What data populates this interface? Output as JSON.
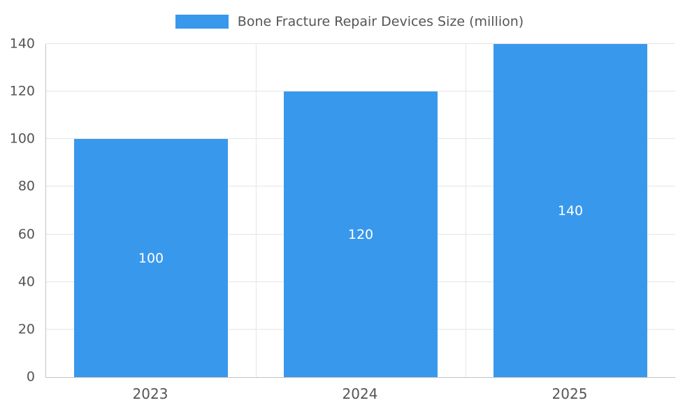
{
  "chart_data": {
    "type": "bar",
    "categories": [
      "2023",
      "2024",
      "2025"
    ],
    "values": [
      100,
      120,
      140
    ],
    "series_name": "Bone Fracture Repair Devices Size (million)",
    "title": "Bone Fracture Repair Devices Size (million)",
    "xlabel": "",
    "ylabel": "",
    "ylim": [
      0,
      140
    ],
    "yticks": [
      0,
      20,
      40,
      60,
      80,
      100,
      120,
      140
    ],
    "grid": true,
    "legend_position": "top",
    "bar_color": "#3898ec",
    "bar_label_color": "#ffffff",
    "grid_color": "#e6e6e6",
    "axis_color": "#c2c2c2",
    "text_color": "#555555"
  }
}
